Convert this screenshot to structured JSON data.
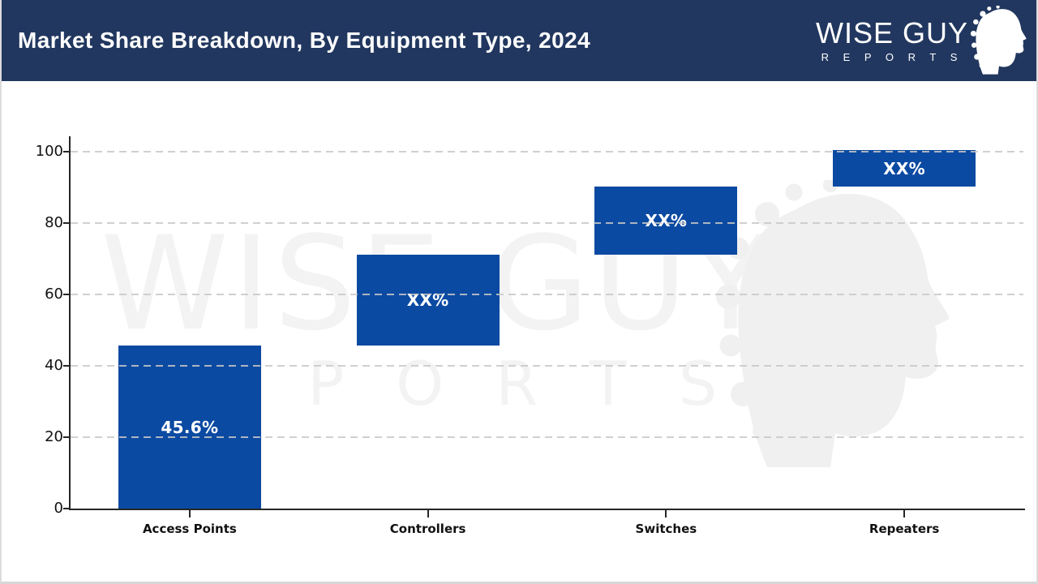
{
  "header": {
    "title": "Market Share Breakdown, By Equipment Type, 2024",
    "logo": {
      "line1": "WISE GUY",
      "line2": "R E P O R T S"
    }
  },
  "watermark": {
    "line1": "WISE GUY",
    "line2": "R E P O R T S"
  },
  "chart_data": {
    "type": "bar",
    "subtype": "floating-segment-waterfall",
    "title": "Market Share Breakdown, By Equipment Type, 2024",
    "categories": [
      "Access Points",
      "Controllers",
      "Switches",
      "Repeaters"
    ],
    "segments": [
      {
        "category": "Access Points",
        "start": 0,
        "end": 45.6,
        "label": "45.6%"
      },
      {
        "category": "Controllers",
        "start": 45.6,
        "end": 71.1,
        "label": "XX%"
      },
      {
        "category": "Switches",
        "start": 71.1,
        "end": 90.2,
        "label": "XX%"
      },
      {
        "category": "Repeaters",
        "start": 90.2,
        "end": 100.4,
        "label": "XX%"
      }
    ],
    "xlabel": "",
    "ylabel": "",
    "yticks": [
      0,
      20,
      40,
      60,
      80,
      100
    ],
    "ylim": [
      0,
      105
    ],
    "grid": "horizontal-dashed",
    "legend": "none"
  },
  "colors": {
    "header_bg": "#21375f",
    "bar": "#0b4aa2",
    "bar_label": "#ffffff",
    "grid": "#c8c8c8",
    "axis": "#262626",
    "tick_text": "#111111",
    "watermark": "#f0f0f0"
  }
}
